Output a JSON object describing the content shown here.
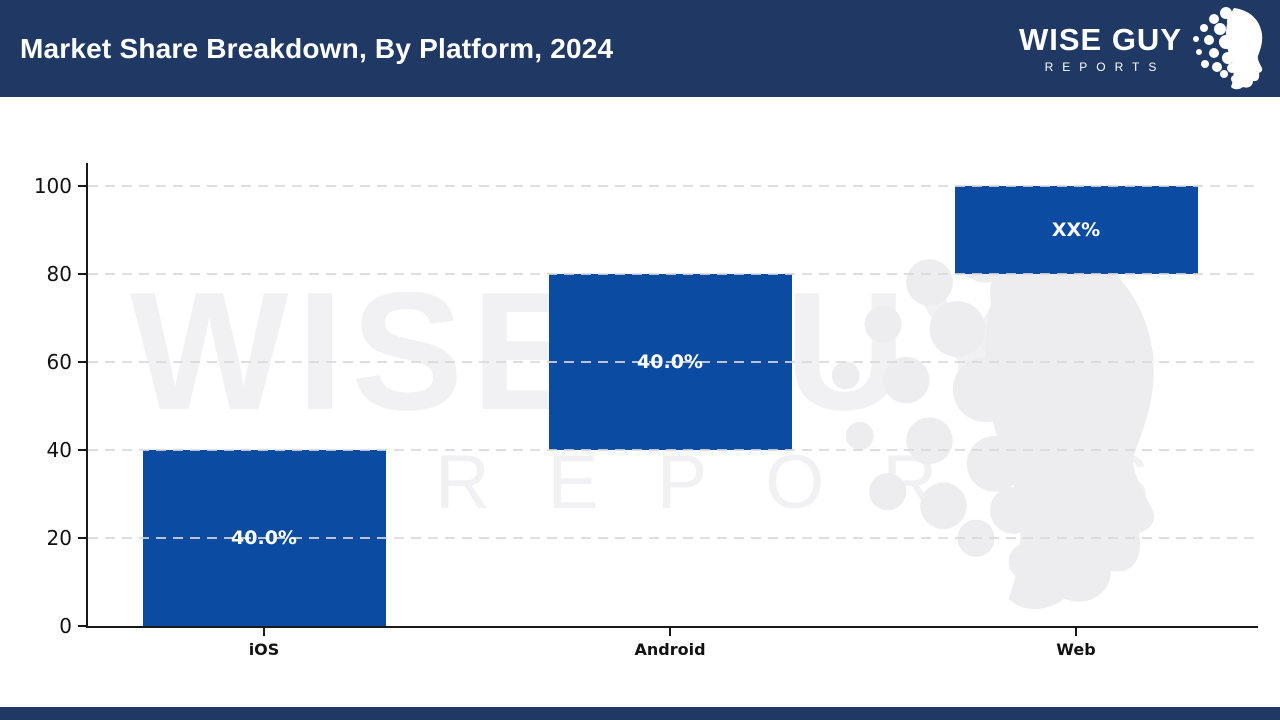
{
  "header": {
    "title": "Market Share Breakdown, By Platform, 2024",
    "logo": {
      "line1": "WISE GUY",
      "line2": "REPORTS"
    }
  },
  "watermark": {
    "line1": "WISE GUY",
    "line2": "REPORTS"
  },
  "colors": {
    "header_bg": "#1f3864",
    "footer_bg": "#1f3864",
    "bar": "#0b4ba1",
    "bar_label": "#ffffff",
    "axis": "#1a1a1a",
    "grid": "#d9d9d9",
    "watermark": "#f1f1f4"
  },
  "chart_data": {
    "type": "waterfall",
    "title": "Market Share Breakdown, By Platform, 2024",
    "categories": [
      "iOS",
      "Android",
      "Web"
    ],
    "segments": [
      {
        "category": "iOS",
        "start": 0,
        "end": 40,
        "label": "40.0%"
      },
      {
        "category": "Android",
        "start": 40,
        "end": 80,
        "label": "40.0%"
      },
      {
        "category": "Web",
        "start": 80,
        "end": 100,
        "label": "XX%"
      }
    ],
    "yticks": [
      0,
      20,
      40,
      60,
      80,
      100
    ],
    "ylim": [
      0,
      105
    ],
    "xlabel": "",
    "ylabel": "",
    "grid": true,
    "grid_style": "dashed",
    "legend": false,
    "bar_color": "#0b4ba1",
    "label_color": "#ffffff"
  }
}
